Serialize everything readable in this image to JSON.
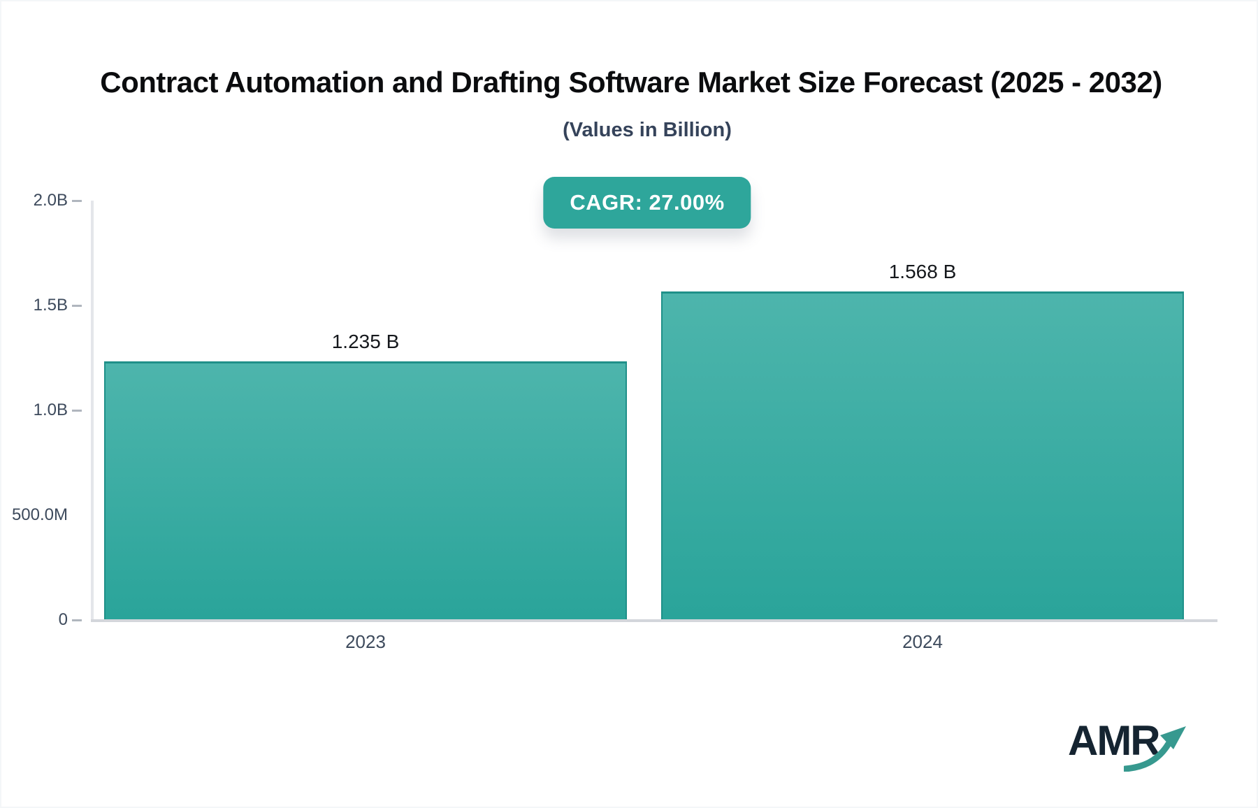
{
  "header": {
    "title": "Contract Automation and Drafting Software Market Size Forecast (2025 - 2032)",
    "subtitle": "(Values in Billion)",
    "cagr_badge": "CAGR: 27.00%"
  },
  "chart_data": {
    "type": "bar",
    "title": "Contract Automation and Drafting Software Market Size Forecast (2025 - 2032)",
    "subtitle": "(Values in Billion)",
    "cagr_percent": 27.0,
    "categories": [
      "2023",
      "2024"
    ],
    "values": [
      1.235,
      1.568
    ],
    "value_labels": [
      "1.235 B",
      "1.568 B"
    ],
    "ylim": [
      0,
      2.0
    ],
    "yticks": [
      {
        "value": 0,
        "label": "0",
        "tick": true
      },
      {
        "value": 0.5,
        "label": "500.0M",
        "tick": false
      },
      {
        "value": 1.0,
        "label": "1.0B",
        "tick": true
      },
      {
        "value": 1.5,
        "label": "1.5B",
        "tick": true
      },
      {
        "value": 2.0,
        "label": "2.0B",
        "tick": true
      }
    ],
    "grid": false,
    "legend": false
  },
  "logo": {
    "text": "AMR",
    "arrow_icon": "growth-arrow-icon"
  },
  "colors": {
    "accent": "#2EA69B",
    "bar_fill_top": "#4DB5AC",
    "bar_fill_bottom": "#2AA49A",
    "bar_border": "#1F9089",
    "axis_line": "#E4E6EA",
    "baseline": "#D3D6DB",
    "tick": "#B0B6BE",
    "axis_label": "#3D4A5C",
    "value_label": "#15181C",
    "title_color": "#0B0C0E",
    "subtitle_color": "#35435A",
    "logo_text_color": "#152431",
    "logo_arrow_color": "#37998F"
  }
}
